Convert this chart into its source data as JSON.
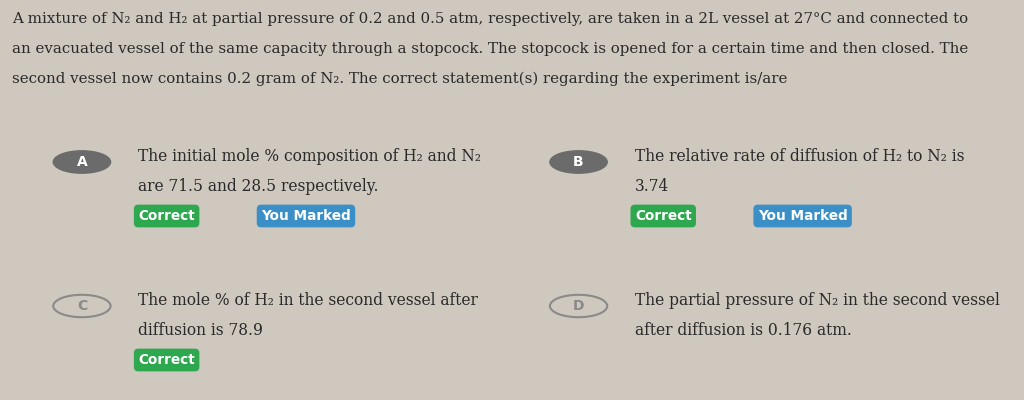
{
  "background_color": "#cec8be",
  "question_text_line1": "A mixture of N₂ and H₂ at partial pressure of 0.2 and 0.5 atm, respectively, are taken in a 2L vessel at 27°C and connected to",
  "question_text_line2": "an evacuated vessel of the same capacity through a stopcock. The stopcock is opened for a certain time and then closed. The",
  "question_text_line3": "second vessel now contains 0.2 gram of N₂. The correct statement(s) regarding the experiment is/are",
  "options": [
    {
      "label": "A",
      "circle_filled": true,
      "circle_color": "#6b6b6b",
      "text_lines": [
        "The initial mole % composition of H₂ and N₂",
        "are 71.5 and 28.5 respectively."
      ],
      "badges": [
        "Correct",
        "You Marked"
      ],
      "badge_colors": [
        "#2ea84f",
        "#3a8fc7"
      ],
      "col": 0,
      "row": 0
    },
    {
      "label": "B",
      "circle_filled": true,
      "circle_color": "#6b6b6b",
      "text_lines": [
        "The relative rate of diffusion of H₂ to N₂ is",
        "3.74"
      ],
      "badges": [
        "Correct",
        "You Marked"
      ],
      "badge_colors": [
        "#2ea84f",
        "#3a8fc7"
      ],
      "col": 1,
      "row": 0
    },
    {
      "label": "C",
      "circle_filled": false,
      "circle_color": "#8a8a8a",
      "text_lines": [
        "The mole % of H₂ in the second vessel after",
        "diffusion is 78.9"
      ],
      "badges": [
        "Correct"
      ],
      "badge_colors": [
        "#2ea84f"
      ],
      "col": 0,
      "row": 1
    },
    {
      "label": "D",
      "circle_filled": false,
      "circle_color": "#8a8a8a",
      "text_lines": [
        "The partial pressure of N₂ in the second vessel",
        "after diffusion is 0.176 atm."
      ],
      "badges": [],
      "badge_colors": [],
      "col": 1,
      "row": 1
    }
  ],
  "text_color": "#2a2a2a",
  "font_size_question": 10.8,
  "font_size_option": 11.2,
  "font_size_badge": 9.8,
  "font_size_label": 10.0
}
